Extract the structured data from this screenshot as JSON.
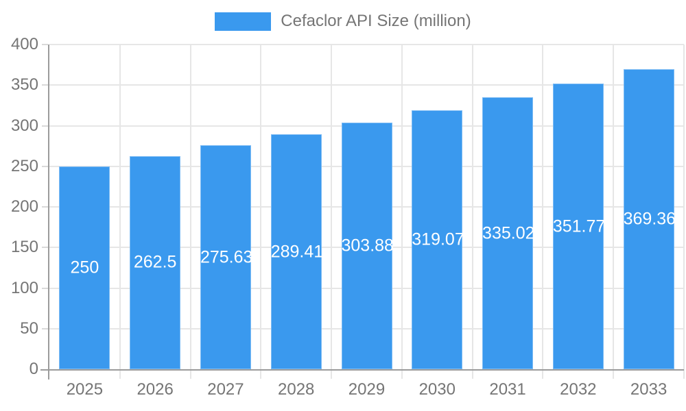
{
  "legend": {
    "items": [
      {
        "label": "Cefaclor API Size (million)",
        "swatch_color": "#3A99EE"
      }
    ]
  },
  "chart_data": {
    "type": "bar",
    "title": "Cefaclor API Size (million)",
    "categories": [
      "2025",
      "2026",
      "2027",
      "2028",
      "2029",
      "2030",
      "2031",
      "2032",
      "2033"
    ],
    "values": [
      250,
      262.5,
      275.63,
      289.41,
      303.88,
      319.07,
      335.02,
      351.77,
      369.36
    ],
    "bar_labels": [
      "250",
      "262.5",
      "275.63",
      "289.41",
      "303.88",
      "319.07",
      "335.02",
      "351.77",
      "369.36"
    ],
    "xlabel": "",
    "ylabel": "",
    "ylim": [
      0,
      400
    ],
    "yticks": [
      0,
      50,
      100,
      150,
      200,
      250,
      300,
      350,
      400
    ],
    "grid": true,
    "legend_position": "top-center",
    "colors": {
      "bar": "#3A99EE",
      "bar_label": "#ffffff",
      "axis": "#9b9b9b",
      "grid": "#e6e6e6",
      "boundary_tick": "#d9d9d9",
      "text": "#757575"
    }
  }
}
